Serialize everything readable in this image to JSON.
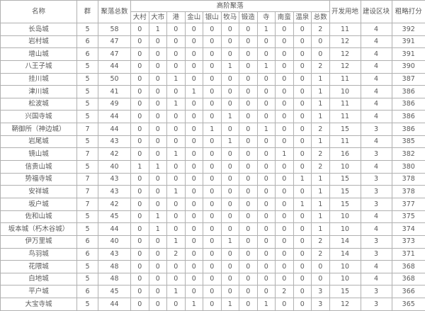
{
  "chart_data": {
    "type": "table",
    "header": {
      "name": "名称",
      "group": "群",
      "settlement_total": "聚落总数",
      "high_tier_group": "高阶聚落",
      "high_tier_cols": [
        "大村",
        "大市",
        "港",
        "金山",
        "银山",
        "牧马",
        "锻造",
        "寺",
        "南蛮",
        "温泉",
        "总数"
      ],
      "dev_land": "开发用地",
      "build_blocks": "建设区块",
      "rough_score": "粗略打分"
    },
    "rows": [
      {
        "name": "长岛城",
        "group": 5,
        "total": 58,
        "high": [
          0,
          1,
          0,
          0,
          0,
          0,
          0,
          1,
          0,
          0
        ],
        "high_total": 2,
        "dev": 11,
        "blocks": 4,
        "score": 392
      },
      {
        "name": "岩村城",
        "group": 6,
        "total": 47,
        "high": [
          0,
          0,
          0,
          0,
          0,
          0,
          0,
          0,
          0,
          0
        ],
        "high_total": 0,
        "dev": 12,
        "blocks": 4,
        "score": 391
      },
      {
        "name": "增山城",
        "group": 6,
        "total": 47,
        "high": [
          0,
          0,
          0,
          0,
          0,
          0,
          0,
          0,
          0,
          0
        ],
        "high_total": 0,
        "dev": 12,
        "blocks": 4,
        "score": 391
      },
      {
        "name": "八王子城",
        "group": 5,
        "total": 44,
        "high": [
          0,
          0,
          0,
          0,
          0,
          1,
          0,
          1,
          0,
          0
        ],
        "high_total": 2,
        "dev": 12,
        "blocks": 4,
        "score": 390
      },
      {
        "name": "挂川城",
        "group": 5,
        "total": 50,
        "high": [
          0,
          0,
          1,
          0,
          0,
          0,
          0,
          0,
          0,
          0
        ],
        "high_total": 1,
        "dev": 11,
        "blocks": 4,
        "score": 387
      },
      {
        "name": "津川城",
        "group": 5,
        "total": 41,
        "high": [
          0,
          0,
          0,
          1,
          0,
          0,
          0,
          0,
          0,
          0
        ],
        "high_total": 1,
        "dev": 10,
        "blocks": 4,
        "score": 386
      },
      {
        "name": "松波城",
        "group": 5,
        "total": 49,
        "high": [
          0,
          0,
          1,
          0,
          0,
          0,
          0,
          0,
          0,
          0
        ],
        "high_total": 1,
        "dev": 11,
        "blocks": 4,
        "score": 386
      },
      {
        "name": "兴国寺城",
        "group": 5,
        "total": 44,
        "high": [
          0,
          0,
          0,
          0,
          0,
          1,
          0,
          0,
          0,
          0
        ],
        "high_total": 1,
        "dev": 11,
        "blocks": 4,
        "score": 386
      },
      {
        "name": "鞆御所（神边城）",
        "group": 7,
        "total": 44,
        "high": [
          0,
          0,
          0,
          0,
          1,
          0,
          0,
          1,
          0,
          0
        ],
        "high_total": 2,
        "dev": 15,
        "blocks": 3,
        "score": 386
      },
      {
        "name": "岩尾城",
        "group": 5,
        "total": 43,
        "high": [
          0,
          0,
          0,
          0,
          0,
          1,
          0,
          0,
          0,
          0
        ],
        "high_total": 1,
        "dev": 11,
        "blocks": 4,
        "score": 385
      },
      {
        "name": "镜山城",
        "group": 7,
        "total": 42,
        "high": [
          0,
          0,
          1,
          0,
          0,
          0,
          0,
          0,
          1,
          0
        ],
        "high_total": 2,
        "dev": 16,
        "blocks": 3,
        "score": 382
      },
      {
        "name": "信贵山城",
        "group": 5,
        "total": 40,
        "high": [
          1,
          1,
          0,
          0,
          0,
          0,
          0,
          0,
          0,
          0
        ],
        "high_total": 2,
        "dev": 10,
        "blocks": 4,
        "score": 380
      },
      {
        "name": "势福寺城",
        "group": 7,
        "total": 43,
        "high": [
          0,
          0,
          0,
          0,
          0,
          0,
          0,
          0,
          0,
          1
        ],
        "high_total": 1,
        "dev": 15,
        "blocks": 3,
        "score": 378
      },
      {
        "name": "安祥城",
        "group": 7,
        "total": 43,
        "high": [
          0,
          0,
          1,
          0,
          0,
          0,
          0,
          0,
          0,
          0
        ],
        "high_total": 1,
        "dev": 15,
        "blocks": 3,
        "score": 378
      },
      {
        "name": "坂户城",
        "group": 7,
        "total": 42,
        "high": [
          0,
          0,
          0,
          0,
          0,
          0,
          0,
          0,
          0,
          1
        ],
        "high_total": 1,
        "dev": 15,
        "blocks": 3,
        "score": 377
      },
      {
        "name": "佐和山城",
        "group": 5,
        "total": 45,
        "high": [
          0,
          1,
          0,
          0,
          0,
          0,
          0,
          0,
          0,
          0
        ],
        "high_total": 1,
        "dev": 10,
        "blocks": 4,
        "score": 375
      },
      {
        "name": "坂本城（朽木谷城）",
        "group": 5,
        "total": 44,
        "high": [
          0,
          1,
          0,
          0,
          0,
          0,
          0,
          0,
          0,
          0
        ],
        "high_total": 1,
        "dev": 10,
        "blocks": 4,
        "score": 374
      },
      {
        "name": "伊万里城",
        "group": 6,
        "total": 40,
        "high": [
          0,
          0,
          1,
          0,
          0,
          1,
          0,
          0,
          0,
          0
        ],
        "high_total": 2,
        "dev": 14,
        "blocks": 3,
        "score": 373
      },
      {
        "name": "鸟羽城",
        "group": 6,
        "total": 43,
        "high": [
          0,
          0,
          2,
          0,
          0,
          0,
          0,
          0,
          0,
          0
        ],
        "high_total": 2,
        "dev": 14,
        "blocks": 3,
        "score": 371
      },
      {
        "name": "花隈城",
        "group": 5,
        "total": 48,
        "high": [
          0,
          0,
          0,
          0,
          0,
          0,
          0,
          0,
          0,
          0
        ],
        "high_total": 0,
        "dev": 10,
        "blocks": 4,
        "score": 368
      },
      {
        "name": "白地城",
        "group": 5,
        "total": 48,
        "high": [
          0,
          0,
          0,
          0,
          0,
          0,
          0,
          0,
          0,
          0
        ],
        "high_total": 0,
        "dev": 10,
        "blocks": 4,
        "score": 368
      },
      {
        "name": "平户城",
        "group": 6,
        "total": 45,
        "high": [
          0,
          0,
          1,
          0,
          0,
          0,
          0,
          0,
          2,
          0
        ],
        "high_total": 3,
        "dev": 15,
        "blocks": 3,
        "score": 366
      },
      {
        "name": "大宝寺城",
        "group": 5,
        "total": 44,
        "high": [
          0,
          0,
          0,
          1,
          0,
          1,
          0,
          1,
          0,
          0
        ],
        "high_total": 3,
        "dev": 12,
        "blocks": 3,
        "score": 365
      }
    ]
  },
  "colors": {
    "border": "#b0b0b0",
    "text": "#595959",
    "background": "#ffffff"
  }
}
